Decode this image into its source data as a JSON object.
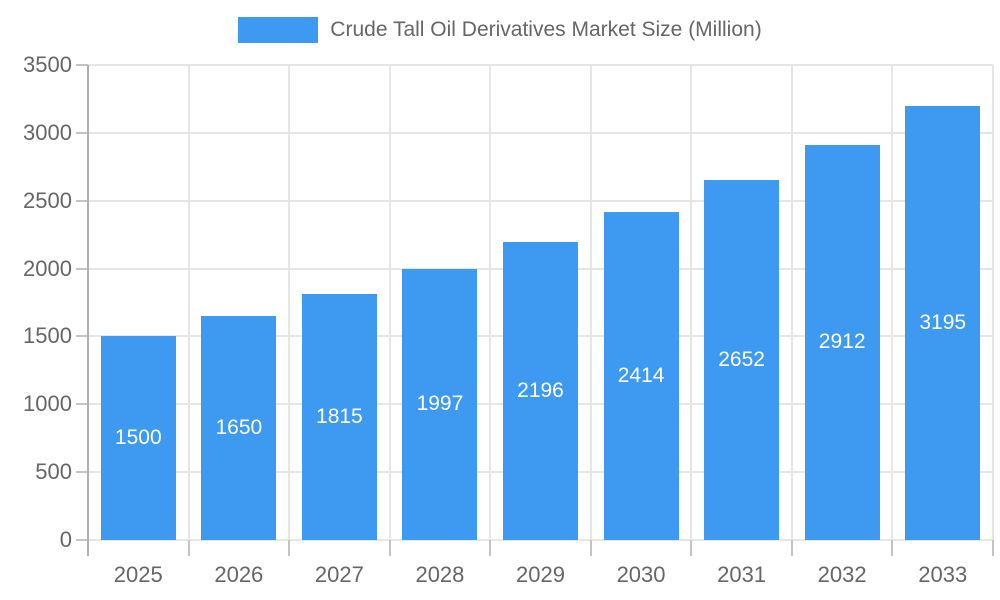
{
  "legend": {
    "label": "Crude Tall Oil Derivatives Market Size (Million)",
    "swatch_color": "#3E9AF0"
  },
  "chart_data": {
    "type": "bar",
    "title": "Crude Tall Oil Derivatives Market Size (Million)",
    "categories": [
      "2025",
      "2026",
      "2027",
      "2028",
      "2029",
      "2030",
      "2031",
      "2032",
      "2033"
    ],
    "values": [
      1500,
      1650,
      1815,
      1997,
      2196,
      2414,
      2652,
      2912,
      3195
    ],
    "value_labels": [
      "1500",
      "1650",
      "1815",
      "1997",
      "2196",
      "2414",
      "2652",
      "2912",
      "3195"
    ],
    "xlabel": "",
    "ylabel": "",
    "ylim": [
      0,
      3500
    ],
    "yticks": [
      0,
      500,
      1000,
      1500,
      2000,
      2500,
      3000,
      3500
    ],
    "grid": true,
    "legend_position": "top",
    "bar_color": "#3E9AF0",
    "value_label_color": "#ffffff",
    "axis_text_color": "#666666",
    "gridline_color": "#e6e6e6",
    "axis_line_color": "#b0b0b0"
  }
}
